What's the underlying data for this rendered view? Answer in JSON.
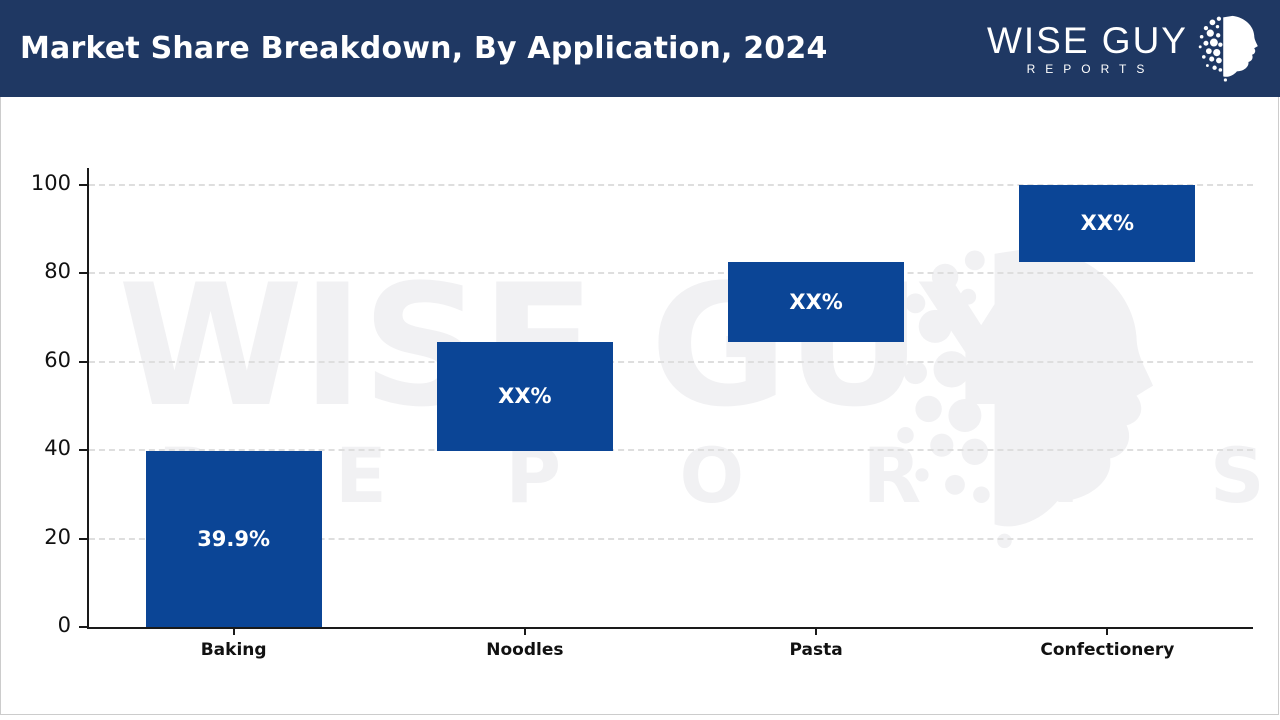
{
  "header": {
    "title": "Market Share Breakdown, By Application, 2024",
    "logo": {
      "line1": "WISE GUY",
      "line2": "REPORTS"
    }
  },
  "watermark": {
    "line1": "WISE GUY",
    "line2": "R E P O R T S"
  },
  "colors": {
    "header_bg": "#1F3863",
    "bar": "#0B4596",
    "axis": "#1A1A1A",
    "grid": "#DEDEDE",
    "bar_label": "#FFFFFF",
    "watermark": "#F1F1F3",
    "border": "#CCCCCC"
  },
  "chart_data": {
    "type": "bar",
    "subtype": "waterfall-market-share",
    "title": "Market Share Breakdown, By Application, 2024",
    "categories": [
      "Baking",
      "Noodles",
      "Pasta",
      "Confectionery"
    ],
    "segments": [
      {
        "category": "Baking",
        "start": 0,
        "end": 39.9,
        "label": "39.9%"
      },
      {
        "category": "Noodles",
        "start": 39.9,
        "end": 64.4,
        "label": "XX%"
      },
      {
        "category": "Pasta",
        "start": 64.4,
        "end": 82.6,
        "label": "XX%"
      },
      {
        "category": "Confectionery",
        "start": 82.6,
        "end": 100,
        "label": "XX%"
      }
    ],
    "xlabel": "",
    "ylabel": "",
    "ylim": [
      0,
      100
    ],
    "yticks": [
      0,
      20,
      40,
      60,
      80,
      100
    ],
    "grid": "dashed-horizontal",
    "legend": "none"
  }
}
